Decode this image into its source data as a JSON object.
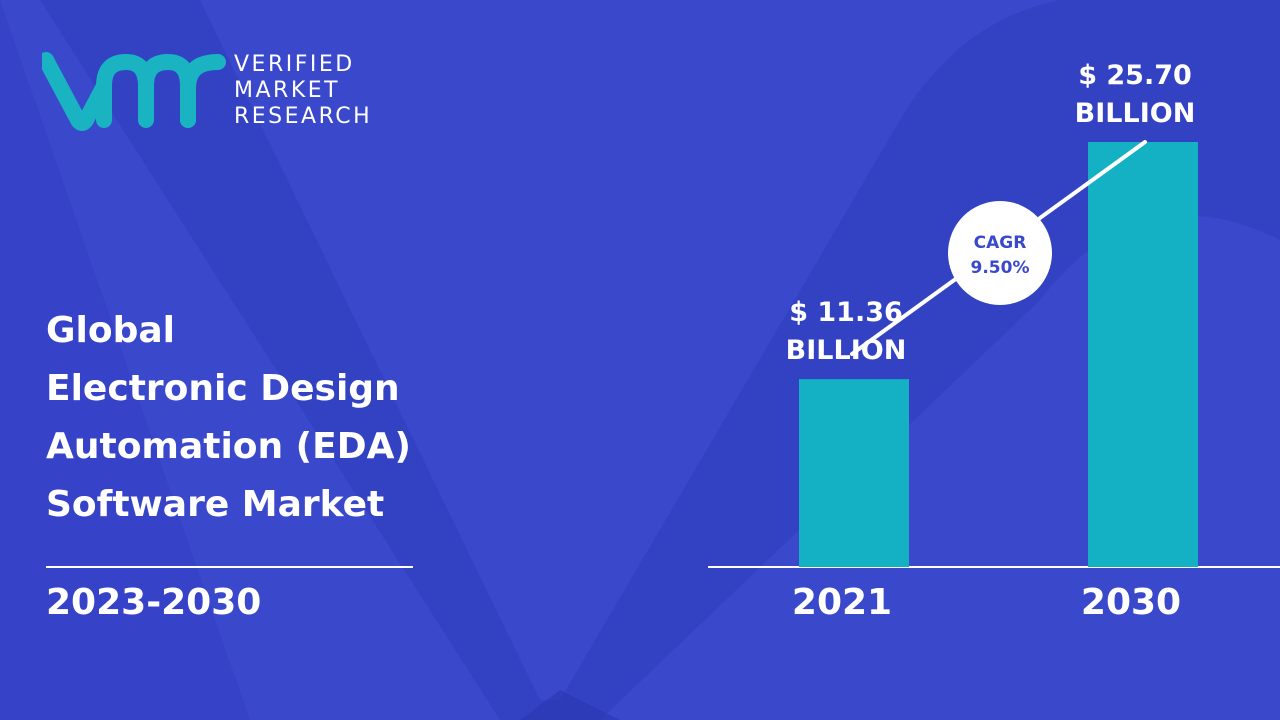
{
  "brand": {
    "line1": "VERIFIED",
    "line2": "MARKET",
    "line3": "RESEARCH"
  },
  "heading": {
    "lines": [
      "Global",
      "Electronic Design",
      "Automation (EDA)",
      "Software Market"
    ]
  },
  "period": "2023-2030",
  "colors": {
    "background": "#3a48cc",
    "bar": "#14b0c4",
    "logo": "#19b3c1",
    "text": "#ffffff",
    "cagr_text": "#3a48cc"
  },
  "chart_data": {
    "type": "bar",
    "categories": [
      "2021",
      "2030"
    ],
    "values": [
      11.36,
      25.7
    ],
    "value_labels": [
      [
        "$ 11.36",
        "BILLION"
      ],
      [
        "$ 25.70",
        "BILLION"
      ]
    ],
    "unit": "BILLION",
    "annotation": {
      "line1": "CAGR",
      "line2": "9.50%"
    },
    "grid": false
  }
}
